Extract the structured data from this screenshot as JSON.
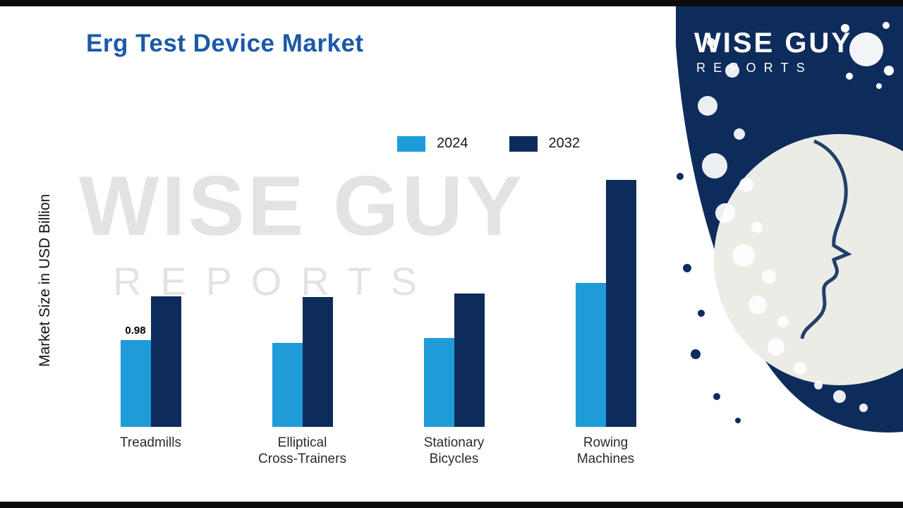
{
  "title": "Erg Test Device Market",
  "brand": {
    "name_line1": "WISE GUY",
    "name_line2": "REPORTS"
  },
  "watermark": {
    "line1": "WISE GUY",
    "line2": "REPORTS"
  },
  "colors": {
    "title": "#1B59A9",
    "accent_2024": "#1E9CD8",
    "navy": "#0D2C5C",
    "strip": "#0B0B0B",
    "watermark": "#CDCDCD",
    "head_fill": "#ECECE7"
  },
  "chart_data": {
    "type": "bar",
    "title": "Erg Test Device Market",
    "xlabel": "",
    "ylabel": "Market Size in USD Billion",
    "categories": [
      "Treadmills",
      "Elliptical\nCross-Trainers",
      "Stationary\nBicycles",
      "Rowing\nMachines"
    ],
    "series": [
      {
        "name": "2024",
        "color": "#1E9CD8",
        "values": [
          0.98,
          0.95,
          1.01,
          1.63
        ]
      },
      {
        "name": "2032",
        "color": "#0D2C5C",
        "values": [
          1.48,
          1.47,
          1.51,
          2.8
        ]
      }
    ],
    "bar_labels": [
      {
        "series_index": 0,
        "category_index": 0,
        "text": "0.98"
      }
    ],
    "ylim": [
      0,
      3
    ],
    "grid": false,
    "legend_position": "top-center",
    "units": "USD Billion"
  }
}
